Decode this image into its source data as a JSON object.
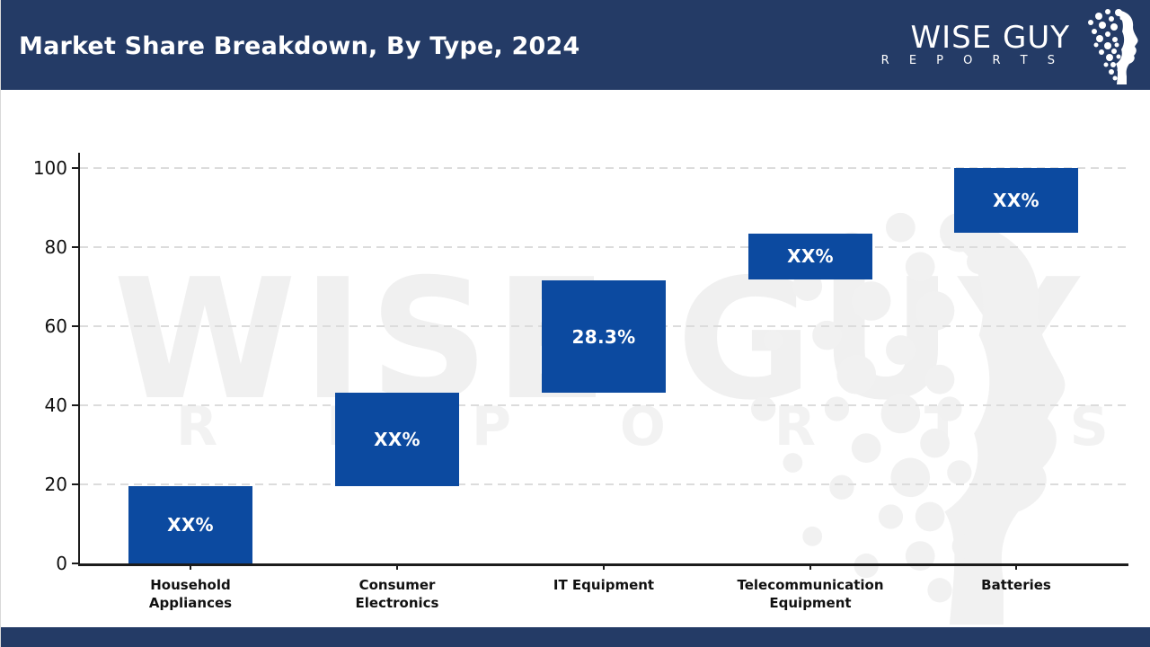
{
  "header": {
    "title": "Market Share Breakdown, By Type, 2024",
    "bg_color": "#243b66",
    "logo": {
      "line1": "WISE GUY",
      "line2": "R E P O R T S"
    }
  },
  "watermark": {
    "line1": "WISE GUY",
    "line2": "R E P O R T S"
  },
  "chart_data": {
    "type": "bar",
    "subtype": "floating-waterfall",
    "title": "Market Share Breakdown, By Type, 2024",
    "categories": [
      "Household\nAppliances",
      "Consumer\nElectronics",
      "IT Equipment",
      "Telecommunication\nEquipment",
      "Batteries"
    ],
    "bars": [
      {
        "category": "Household Appliances",
        "from": 0,
        "to": 19.5,
        "label": "XX%"
      },
      {
        "category": "Consumer Electronics",
        "from": 19.5,
        "to": 43.2,
        "label": "XX%"
      },
      {
        "category": "IT Equipment",
        "from": 43.2,
        "to": 71.5,
        "label": "28.3%"
      },
      {
        "category": "Telecommunication Equipment",
        "from": 71.8,
        "to": 83.5,
        "label": "XX%"
      },
      {
        "category": "Batteries",
        "from": 83.6,
        "to": 100,
        "label": "XX%"
      }
    ],
    "yticks": [
      0,
      20,
      40,
      60,
      80,
      100
    ],
    "ylim": [
      0,
      104
    ],
    "xlabel": "",
    "ylabel": "",
    "grid": "horizontal-dashed",
    "legend": "none",
    "bar_color": "#0c4aa0",
    "bar_label_color": "#ffffff",
    "axis_color": "#1c1c1c"
  }
}
